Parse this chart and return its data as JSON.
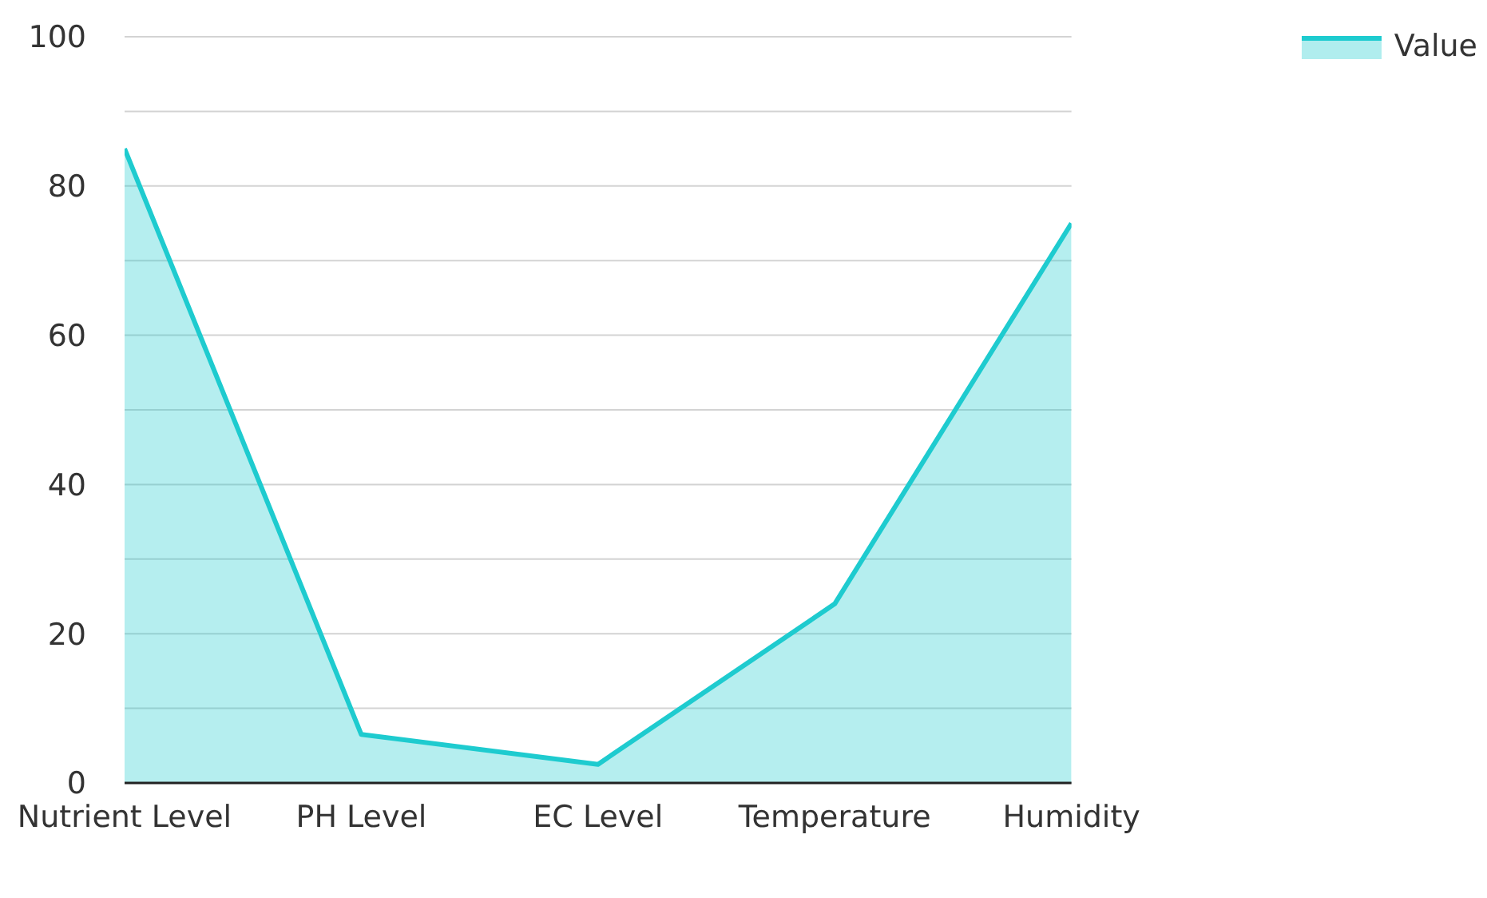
{
  "chart_data": {
    "type": "area",
    "categories": [
      "Nutrient Level",
      "PH Level",
      "EC Level",
      "Temperature",
      "Humidity"
    ],
    "series": [
      {
        "name": "Value",
        "color": "#1ecbcf",
        "values": [
          85,
          6.5,
          2.5,
          24,
          75
        ]
      }
    ],
    "ylim": [
      0,
      100
    ],
    "yticks": [
      0,
      {
        "value": 10,
        "label": null
      },
      20,
      {
        "value": 30,
        "label": null
      },
      40,
      {
        "value": 50,
        "label": null
      },
      60,
      {
        "value": 70,
        "label": null
      },
      80,
      {
        "value": 90,
        "label": null
      },
      100
    ],
    "grid": "y",
    "legend": "top right"
  }
}
